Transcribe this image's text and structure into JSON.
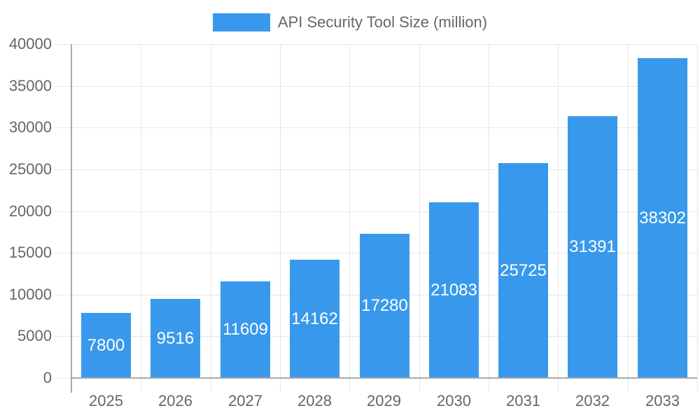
{
  "chart_data": {
    "type": "bar",
    "title": "",
    "xlabel": "",
    "ylabel": "",
    "legend": {
      "label": "API Security Tool Size (million)",
      "position": "top-center"
    },
    "categories": [
      "2025",
      "2026",
      "2027",
      "2028",
      "2029",
      "2030",
      "2031",
      "2032",
      "2033"
    ],
    "series": [
      {
        "name": "API Security Tool Size (million)",
        "values": [
          7800,
          9516,
          11609,
          14162,
          17280,
          21083,
          25725,
          31391,
          38302
        ]
      }
    ],
    "value_labels_position": "inside-center",
    "ylim": [
      0,
      40000
    ],
    "yticks": [
      0,
      5000,
      10000,
      15000,
      20000,
      25000,
      30000,
      35000,
      40000
    ],
    "grid": "horizontal and vertical category boundaries",
    "colors": {
      "bar": "#3899EC",
      "grid": "#E6E6E6",
      "axis": "#A9A9A9",
      "tick_text": "#666666",
      "value_label": "#FFFFFF",
      "background": "#FFFFFF"
    }
  }
}
